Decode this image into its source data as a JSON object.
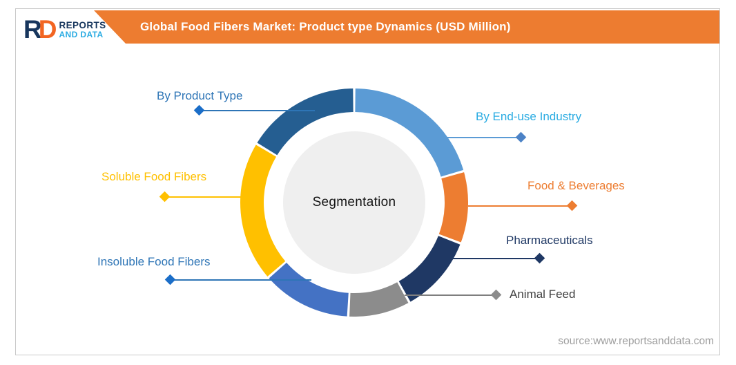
{
  "header": {
    "logo": {
      "mark_r": "R",
      "mark_d": "D",
      "name_line1": "REPORTS",
      "name_line2": "AND DATA",
      "navy": "#17365D",
      "light_blue": "#29ABE2",
      "orange": "#F26522"
    },
    "banner": {
      "title": "Global Food Fibers Market: Product type Dynamics (USD Million)",
      "bg_color": "#ED7C30",
      "text_color": "#FFFFFF"
    }
  },
  "chart_data": {
    "type": "pie",
    "subtype": "donut",
    "title": "Global Food Fibers Market: Product type Dynamics (USD Million)",
    "center_label": "Segmentation",
    "center_bg": "#EFEFEF",
    "gap_deg": 1.2,
    "values_labeled": false,
    "segments": [
      {
        "id": "end-use-industry",
        "label": "By End-use Industry",
        "color": "#5B9BD5",
        "start_deg": 0,
        "end_deg": 74
      },
      {
        "id": "food-beverages",
        "label": "Food & Beverages",
        "color": "#ED7D31",
        "start_deg": 74,
        "end_deg": 111
      },
      {
        "id": "pharmaceuticals",
        "label": "Pharmaceuticals",
        "color": "#1F3864",
        "start_deg": 111,
        "end_deg": 151
      },
      {
        "id": "animal-feed",
        "label": "Animal Feed",
        "color": "#8C8C8C",
        "start_deg": 151,
        "end_deg": 183
      },
      {
        "id": "insoluble-food-fibers",
        "label": "Insoluble Food Fibers",
        "color": "#4472C4",
        "start_deg": 183,
        "end_deg": 229
      },
      {
        "id": "soluble-food-fibers",
        "label": "Soluble Food Fibers",
        "color": "#FFC000",
        "start_deg": 229,
        "end_deg": 301
      },
      {
        "id": "product-type",
        "label": "By Product Type",
        "color": "#255E91",
        "start_deg": 301,
        "end_deg": 360
      }
    ]
  },
  "callouts": [
    {
      "id": "product",
      "text": "By Product Type",
      "text_color": "#2E75B6",
      "marker_color": "#1B6EC8",
      "line_color": "#2E75B6"
    },
    {
      "id": "enduse",
      "text": "By End-use Industry",
      "text_color": "#29ABE2",
      "marker_color": "#4C82C6",
      "line_color": "#5B9BD5"
    },
    {
      "id": "foodbev",
      "text": "Food & Beverages",
      "text_color": "#ED7D31",
      "marker_color": "#ED7D31",
      "line_color": "#ED7D31"
    },
    {
      "id": "pharma",
      "text": "Pharmaceuticals",
      "text_color": "#1F3864",
      "marker_color": "#1F3864",
      "line_color": "#1F3864"
    },
    {
      "id": "animal",
      "text": "Animal Feed",
      "text_color": "#404040",
      "marker_color": "#8C8C8C",
      "line_color": "#7F7F7F"
    },
    {
      "id": "insoluble",
      "text": "Insoluble Food Fibers",
      "text_color": "#2E75B6",
      "marker_color": "#1B6EC8",
      "line_color": "#2E75B6"
    },
    {
      "id": "soluble",
      "text": "Soluble Food Fibers",
      "text_color": "#FFC000",
      "marker_color": "#FFC000",
      "line_color": "#FFC000"
    }
  ],
  "footer": {
    "source": "source:www.reportsanddata.com"
  }
}
